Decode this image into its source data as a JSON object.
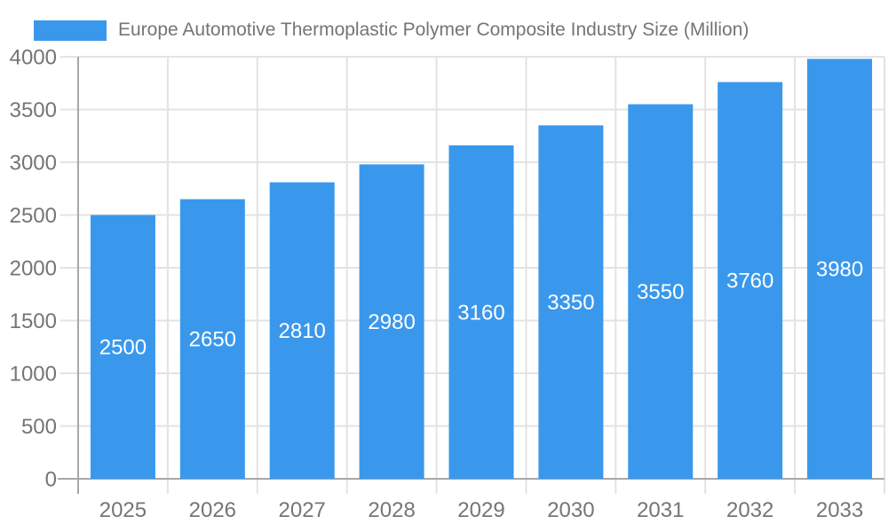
{
  "chart_data": {
    "type": "bar",
    "title": "Europe Automotive Thermoplastic Polymer Composite Industry Size (Million)",
    "legend": {
      "position": "top",
      "entries": [
        {
          "label": "Europe Automotive Thermoplastic Polymer Composite Industry Size (Million)",
          "color": "#3A98EC"
        }
      ]
    },
    "categories": [
      "2025",
      "2026",
      "2027",
      "2028",
      "2029",
      "2030",
      "2031",
      "2032",
      "2033"
    ],
    "values": [
      2500,
      2650,
      2810,
      2980,
      3160,
      3350,
      3550,
      3760,
      3980
    ],
    "value_labels_shown": true,
    "xlabel": "",
    "ylabel": "",
    "ylim": [
      0,
      4000
    ],
    "y_ticks": [
      0,
      500,
      1000,
      1500,
      2000,
      2500,
      3000,
      3500,
      4000
    ],
    "grid": true,
    "colors": {
      "bar": "#3A98EC",
      "value_label": "#ffffff",
      "axis_text": "#757575",
      "grid_line": "#e3e3e3",
      "axis_line": "#a8a8a8",
      "background": "#ffffff"
    }
  }
}
